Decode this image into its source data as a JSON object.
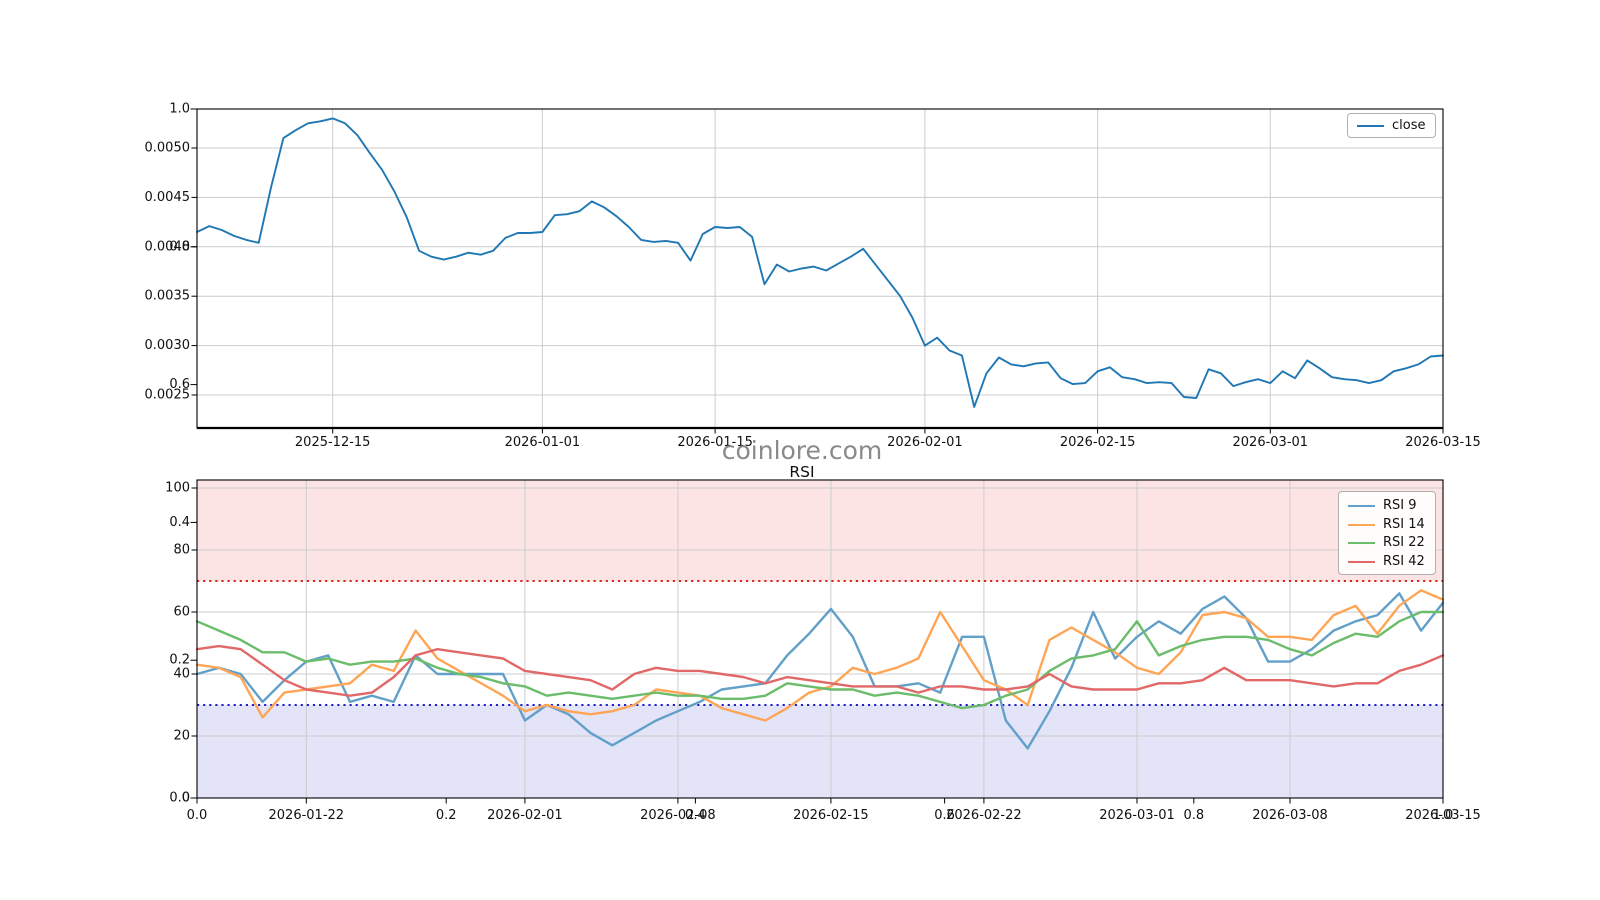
{
  "watermark": "coinlore.com",
  "overlay_axis": {
    "xtick_labels": [
      "0.0",
      "0.2",
      "0.4",
      "0.6",
      "0.8",
      "1.0"
    ],
    "ytick_labels": [
      "0.0",
      "0.2",
      "0.4",
      "0.6",
      "0.8",
      "1.0"
    ]
  },
  "chart_data": [
    {
      "type": "line",
      "name": "price-panel",
      "title": "",
      "legend_position": "upper right",
      "grid": true,
      "ylim": [
        0.00221,
        0.0054
      ],
      "ytick_labels": [
        "0.0050",
        "0.0045",
        "0.0040",
        "0.0035",
        "0.0030",
        "0.0025"
      ],
      "ytick_values": [
        0.005,
        0.0045,
        0.004,
        0.0035,
        0.003,
        0.0025
      ],
      "xtick_dates": [
        "2025-12-15",
        "2026-01-01",
        "2026-01-15",
        "2026-02-01",
        "2026-02-15",
        "2026-03-01",
        "2026-03-15"
      ],
      "dates": [
        "2025-12-04",
        "2025-12-05",
        "2025-12-06",
        "2025-12-07",
        "2025-12-08",
        "2025-12-09",
        "2025-12-10",
        "2025-12-11",
        "2025-12-12",
        "2025-12-13",
        "2025-12-14",
        "2025-12-15",
        "2025-12-16",
        "2025-12-17",
        "2025-12-18",
        "2025-12-19",
        "2025-12-20",
        "2025-12-21",
        "2025-12-22",
        "2025-12-23",
        "2025-12-24",
        "2025-12-25",
        "2025-12-26",
        "2025-12-27",
        "2025-12-28",
        "2025-12-29",
        "2025-12-30",
        "2025-12-31",
        "2026-01-01",
        "2026-01-02",
        "2026-01-03",
        "2026-01-04",
        "2026-01-05",
        "2026-01-06",
        "2026-01-07",
        "2026-01-08",
        "2026-01-09",
        "2026-01-10",
        "2026-01-11",
        "2026-01-12",
        "2026-01-13",
        "2026-01-14",
        "2026-01-15",
        "2026-01-16",
        "2026-01-17",
        "2026-01-18",
        "2026-01-19",
        "2026-01-20",
        "2026-01-21",
        "2026-01-22",
        "2026-01-23",
        "2026-01-24",
        "2026-01-25",
        "2026-01-26",
        "2026-01-27",
        "2026-01-28",
        "2026-01-29",
        "2026-01-30",
        "2026-01-31",
        "2026-02-01",
        "2026-02-02",
        "2026-02-03",
        "2026-02-04",
        "2026-02-05",
        "2026-02-06",
        "2026-02-07",
        "2026-02-08",
        "2026-02-09",
        "2026-02-10",
        "2026-02-11",
        "2026-02-12",
        "2026-02-13",
        "2026-02-14",
        "2026-02-15",
        "2026-02-16",
        "2026-02-17",
        "2026-02-18",
        "2026-02-19",
        "2026-02-20",
        "2026-02-21",
        "2026-02-22",
        "2026-02-23",
        "2026-02-24",
        "2026-02-25",
        "2026-02-26",
        "2026-02-27",
        "2026-02-28",
        "2026-03-01",
        "2026-03-02",
        "2026-03-03",
        "2026-03-04",
        "2026-03-05",
        "2026-03-06",
        "2026-03-07",
        "2026-03-08",
        "2026-03-09",
        "2026-03-10",
        "2026-03-11",
        "2026-03-12",
        "2026-03-13",
        "2026-03-14",
        "2026-03-15"
      ],
      "series": [
        {
          "name": "close",
          "color": "#1f77b4",
          "values": [
            0.00415,
            0.00421,
            0.00417,
            0.00411,
            0.00407,
            0.00404,
            0.0046,
            0.0051,
            0.00518,
            0.00525,
            0.00527,
            0.0053,
            0.00525,
            0.00513,
            0.00495,
            0.00478,
            0.00456,
            0.0043,
            0.00396,
            0.0039,
            0.00387,
            0.0039,
            0.00394,
            0.00392,
            0.00396,
            0.00409,
            0.00414,
            0.00414,
            0.00415,
            0.00432,
            0.00433,
            0.00436,
            0.00446,
            0.0044,
            0.00431,
            0.0042,
            0.00407,
            0.00405,
            0.00406,
            0.00404,
            0.00386,
            0.00413,
            0.0042,
            0.00419,
            0.0042,
            0.0041,
            0.00362,
            0.00382,
            0.00375,
            0.00378,
            0.0038,
            0.00376,
            0.00383,
            0.0039,
            0.00398,
            0.00382,
            0.00366,
            0.0035,
            0.00328,
            0.003,
            0.00308,
            0.00295,
            0.0029,
            0.00238,
            0.00272,
            0.00288,
            0.00281,
            0.00279,
            0.00282,
            0.00283,
            0.00267,
            0.00261,
            0.00262,
            0.00274,
            0.00278,
            0.00268,
            0.00266,
            0.00262,
            0.00263,
            0.00262,
            0.00248,
            0.00247,
            0.00276,
            0.00272,
            0.00259,
            0.00263,
            0.00266,
            0.00262,
            0.00274,
            0.00267,
            0.00285,
            0.00277,
            0.00268,
            0.00266,
            0.00265,
            0.00262,
            0.00265,
            0.00274,
            0.00277,
            0.00281,
            0.00289,
            0.0029
          ]
        }
      ]
    },
    {
      "type": "line",
      "name": "rsi-panel",
      "title": "RSI",
      "legend_position": "upper right",
      "grid": true,
      "ylim": [
        0,
        102.5
      ],
      "ytick_values": [
        100,
        80,
        60,
        40,
        20,
        0
      ],
      "xtick_dates": [
        "2026-01-22",
        "2026-02-01",
        "2026-02-08",
        "2026-02-15",
        "2026-02-22",
        "2026-03-01",
        "2026-03-08",
        "2026-03-15"
      ],
      "overbought": {
        "level": 70,
        "line_color": "#dd2222",
        "band_color": "#fce4e4"
      },
      "oversold": {
        "level": 30,
        "line_color": "#2222cc",
        "band_color": "#e4e4f8"
      },
      "dates": [
        "2026-01-17",
        "2026-01-18",
        "2026-01-19",
        "2026-01-20",
        "2026-01-21",
        "2026-01-22",
        "2026-01-23",
        "2026-01-24",
        "2026-01-25",
        "2026-01-26",
        "2026-01-27",
        "2026-01-28",
        "2026-01-29",
        "2026-01-30",
        "2026-01-31",
        "2026-02-01",
        "2026-02-02",
        "2026-02-03",
        "2026-02-04",
        "2026-02-05",
        "2026-02-06",
        "2026-02-07",
        "2026-02-08",
        "2026-02-09",
        "2026-02-10",
        "2026-02-11",
        "2026-02-12",
        "2026-02-13",
        "2026-02-14",
        "2026-02-15",
        "2026-02-16",
        "2026-02-17",
        "2026-02-18",
        "2026-02-19",
        "2026-02-20",
        "2026-02-21",
        "2026-02-22",
        "2026-02-23",
        "2026-02-24",
        "2026-02-25",
        "2026-02-26",
        "2026-02-27",
        "2026-02-28",
        "2026-03-01",
        "2026-03-02",
        "2026-03-03",
        "2026-03-04",
        "2026-03-05",
        "2026-03-06",
        "2026-03-07",
        "2026-03-08",
        "2026-03-09",
        "2026-03-10",
        "2026-03-11",
        "2026-03-12",
        "2026-03-13",
        "2026-03-14",
        "2026-03-15"
      ],
      "series": [
        {
          "name": "RSI 9",
          "color": "#62a0ca",
          "values": [
            40,
            42,
            40,
            31,
            38,
            44,
            46,
            31,
            33,
            31,
            46,
            40,
            40,
            40,
            40,
            25,
            30,
            27,
            21,
            17,
            21,
            25,
            28,
            31,
            35,
            36,
            37,
            46,
            53,
            61,
            52,
            36,
            36,
            37,
            34,
            52,
            52,
            25,
            16,
            28,
            42,
            60,
            45,
            52,
            57,
            53,
            61,
            65,
            58,
            44,
            44,
            48,
            54,
            57,
            59,
            66,
            54,
            63
          ]
        },
        {
          "name": "RSI 14",
          "color": "#ffa556",
          "values": [
            43,
            42,
            39,
            26,
            34,
            35,
            36,
            37,
            43,
            41,
            54,
            45,
            41,
            37,
            33,
            28,
            30,
            28,
            27,
            28,
            30,
            35,
            34,
            33,
            29,
            27,
            25,
            29,
            34,
            36,
            42,
            40,
            42,
            45,
            60,
            49,
            38,
            35,
            30,
            51,
            55,
            51,
            47,
            42,
            40,
            47,
            59,
            60,
            58,
            52,
            52,
            51,
            59,
            62,
            53,
            62,
            67,
            64
          ]
        },
        {
          "name": "RSI 22",
          "color": "#6bbc6b",
          "values": [
            57,
            54,
            51,
            47,
            47,
            44,
            45,
            43,
            44,
            44,
            45,
            42,
            40,
            39,
            37,
            36,
            33,
            34,
            33,
            32,
            33,
            34,
            33,
            33,
            32,
            32,
            33,
            37,
            36,
            35,
            35,
            33,
            34,
            33,
            31,
            29,
            30,
            33,
            35,
            41,
            45,
            46,
            48,
            57,
            46,
            49,
            51,
            52,
            52,
            51,
            48,
            46,
            50,
            53,
            52,
            57,
            60,
            60
          ]
        },
        {
          "name": "RSI 42",
          "color": "#e26868",
          "values": [
            48,
            49,
            48,
            43,
            38,
            35,
            34,
            33,
            34,
            39,
            46,
            48,
            47,
            46,
            45,
            41,
            40,
            39,
            38,
            35,
            40,
            42,
            41,
            41,
            40,
            39,
            37,
            39,
            38,
            37,
            36,
            36,
            36,
            34,
            36,
            36,
            35,
            35,
            36,
            40,
            36,
            35,
            35,
            35,
            37,
            37,
            38,
            42,
            38,
            38,
            38,
            37,
            36,
            37,
            37,
            41,
            43,
            46
          ]
        }
      ]
    }
  ]
}
